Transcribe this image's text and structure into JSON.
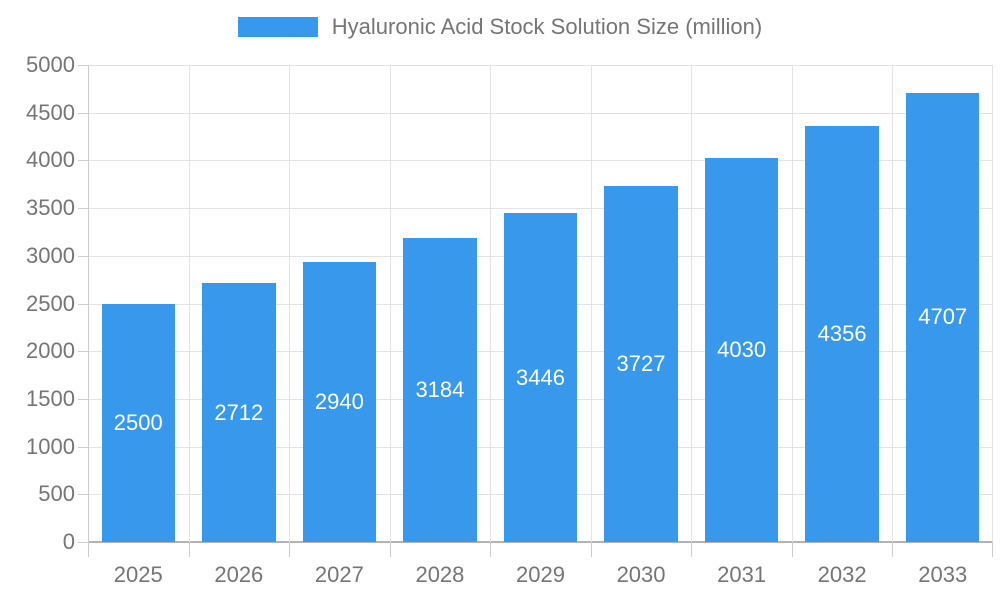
{
  "colors": {
    "bar": "#3898ec",
    "axis_text": "#757575",
    "value_label_text": "#ffffff",
    "gridline": "#e3e3e3",
    "axis_line": "#b3b3b3",
    "tick_line": "#cccccc",
    "background": "#ffffff"
  },
  "legend": {
    "label": "Hyaluronic Acid Stock Solution Size (million)"
  },
  "chart_data": {
    "type": "bar",
    "title": "Hyaluronic Acid Stock Solution Size (million)",
    "categories": [
      "2025",
      "2026",
      "2027",
      "2028",
      "2029",
      "2030",
      "2031",
      "2032",
      "2033"
    ],
    "series": [
      {
        "name": "Hyaluronic Acid Stock Solution Size (million)",
        "values": [
          2500,
          2712,
          2940,
          3184,
          3446,
          3727,
          4030,
          4356,
          4707
        ]
      }
    ],
    "xlabel": "",
    "ylabel": "",
    "ylim": [
      0,
      5000
    ],
    "ytick_step": 500,
    "yticks": [
      0,
      500,
      1000,
      1500,
      2000,
      2500,
      3000,
      3500,
      4000,
      4500,
      5000
    ],
    "grid": true,
    "legend_position": "top",
    "value_labels": "inside-center"
  }
}
